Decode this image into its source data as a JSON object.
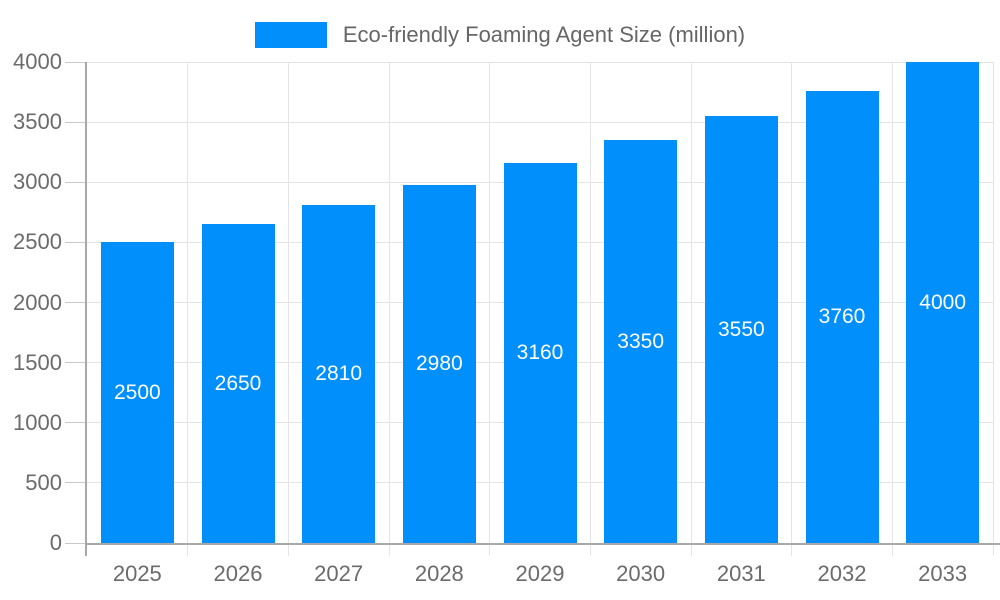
{
  "legend": {
    "label": "Eco-friendly Foaming Agent Size (million)"
  },
  "colors": {
    "bar": "#008FFB",
    "bar_value_text": "#FFFFFF",
    "axis_line": "#A8A8A8",
    "gridline": "#E4E4E4",
    "tick": "#C9C9C9",
    "axis_text": "#6B6B6B",
    "legend_text": "#666666"
  },
  "chart_data": {
    "type": "bar",
    "title": "",
    "xlabel": "",
    "ylabel": "",
    "categories": [
      "2025",
      "2026",
      "2027",
      "2028",
      "2029",
      "2030",
      "2031",
      "2032",
      "2033"
    ],
    "series": [
      {
        "name": "Eco-friendly Foaming Agent Size (million)",
        "values": [
          2500,
          2650,
          2810,
          2980,
          3160,
          3350,
          3550,
          3760,
          4000
        ]
      }
    ],
    "data_labels": [
      "2500",
      "2650",
      "2810",
      "2980",
      "3160",
      "3350",
      "3550",
      "3760",
      "4000"
    ],
    "ylim": [
      0,
      4000
    ],
    "yticks": [
      0,
      500,
      1000,
      1500,
      2000,
      2500,
      3000,
      3500,
      4000
    ],
    "grid": true,
    "legend_position": "top-center",
    "data_label_position": "center-of-bar"
  }
}
